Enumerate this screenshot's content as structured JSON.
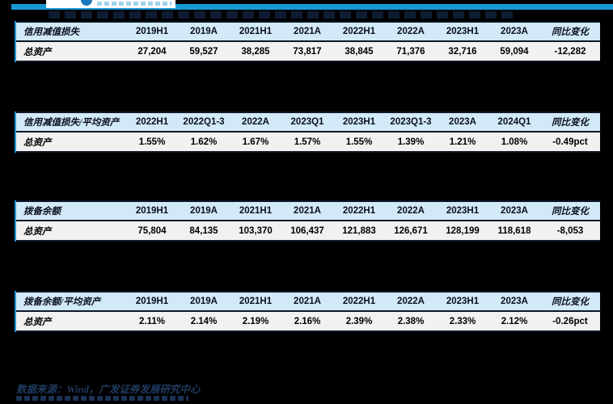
{
  "footer": {
    "source": "数据来源：Wind，广发证券发展研究中心"
  },
  "colors": {
    "accent_blue": "#1899d6",
    "table_side_border": "#2095d8",
    "header_row_bg": "#d2e9f7",
    "data_row_bg": "#f1f1f1",
    "dark_border": "#0d1726",
    "footer_text": "#1e3a5f",
    "page_bg": "#000000"
  },
  "tables": [
    {
      "columns": [
        "信用减值损失",
        "2019H1",
        "2019A",
        "2021H1",
        "2021A",
        "2022H1",
        "2022A",
        "2023H1",
        "2023A",
        "同比变化"
      ],
      "rows": [
        {
          "label": "总资产",
          "values": [
            "27,204",
            "59,527",
            "38,285",
            "73,817",
            "38,845",
            "71,376",
            "32,716",
            "59,094",
            "-12,282"
          ]
        }
      ]
    },
    {
      "columns": [
        "信用减值损失/平均资产",
        "2022H1",
        "2022Q1-3",
        "2022A",
        "2023Q1",
        "2023H1",
        "2023Q1-3",
        "2023A",
        "2024Q1",
        "同比变化"
      ],
      "rows": [
        {
          "label": "总资产",
          "values": [
            "1.55%",
            "1.62%",
            "1.67%",
            "1.57%",
            "1.55%",
            "1.39%",
            "1.21%",
            "1.08%",
            "-0.49pct"
          ]
        }
      ]
    },
    {
      "columns": [
        "拨备余额",
        "2019H1",
        "2019A",
        "2021H1",
        "2021A",
        "2022H1",
        "2022A",
        "2023H1",
        "2023A",
        "同比变化"
      ],
      "rows": [
        {
          "label": "总资产",
          "values": [
            "75,804",
            "84,135",
            "103,370",
            "106,437",
            "121,883",
            "126,671",
            "128,199",
            "118,618",
            "-8,053"
          ]
        }
      ]
    },
    {
      "columns": [
        "拨备余额/平均资产",
        "2019H1",
        "2019A",
        "2021H1",
        "2021A",
        "2022H1",
        "2022A",
        "2023H1",
        "2023A",
        "同比变化"
      ],
      "rows": [
        {
          "label": "总资产",
          "values": [
            "2.11%",
            "2.14%",
            "2.19%",
            "2.16%",
            "2.39%",
            "2.38%",
            "2.33%",
            "2.12%",
            "-0.26pct"
          ]
        }
      ]
    }
  ]
}
